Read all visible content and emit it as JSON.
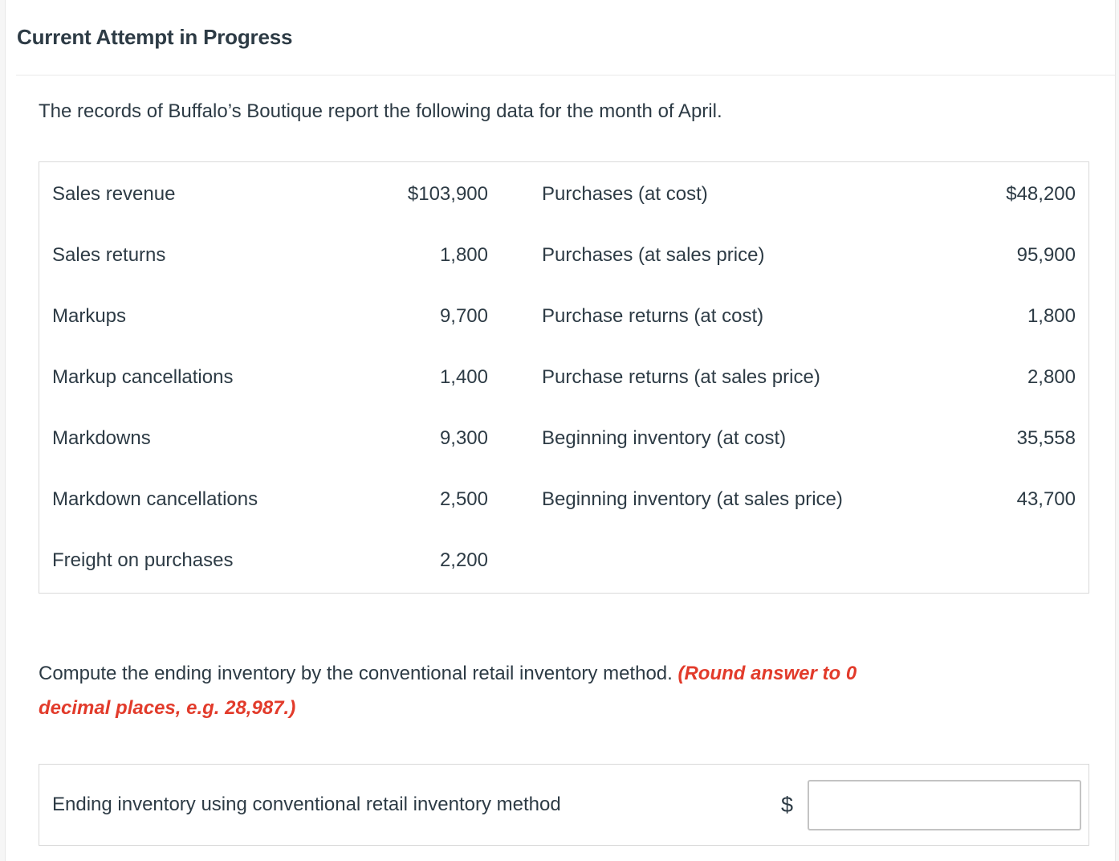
{
  "page": {
    "title": "Current Attempt in Progress"
  },
  "intro": "The records of Buffalo’s Boutique report the following data for the month of April.",
  "table": {
    "rows": [
      {
        "left_label": "Sales revenue",
        "left_value": "$103,900",
        "right_label": "Purchases (at cost)",
        "right_value": "$48,200"
      },
      {
        "left_label": "Sales returns",
        "left_value": "1,800",
        "right_label": "Purchases (at sales price)",
        "right_value": "95,900"
      },
      {
        "left_label": "Markups",
        "left_value": "9,700",
        "right_label": "Purchase returns (at cost)",
        "right_value": "1,800"
      },
      {
        "left_label": "Markup cancellations",
        "left_value": "1,400",
        "right_label": "Purchase returns (at sales price)",
        "right_value": "2,800"
      },
      {
        "left_label": "Markdowns",
        "left_value": "9,300",
        "right_label": "Beginning inventory (at cost)",
        "right_value": "35,558"
      },
      {
        "left_label": "Markdown cancellations",
        "left_value": "2,500",
        "right_label": "Beginning inventory (at sales price)",
        "right_value": "43,700"
      },
      {
        "left_label": "Freight on purchases",
        "left_value": "2,200",
        "right_label": "",
        "right_value": ""
      }
    ]
  },
  "instruction": {
    "text": "Compute the ending inventory by the conventional retail inventory method. ",
    "note_line1": "(Round answer to 0",
    "note_line2": "decimal places, e.g. 28,987.)"
  },
  "answer": {
    "label": "Ending inventory using conventional retail inventory method",
    "currency_symbol": "$",
    "input_value": ""
  },
  "colors": {
    "text": "#2d3b45",
    "note_red": "#e23b2b",
    "table_border": "#d9d9d9",
    "divider": "#e9e9e9",
    "input_border": "#c3c3c3",
    "page_background": "#f6f6f6"
  }
}
